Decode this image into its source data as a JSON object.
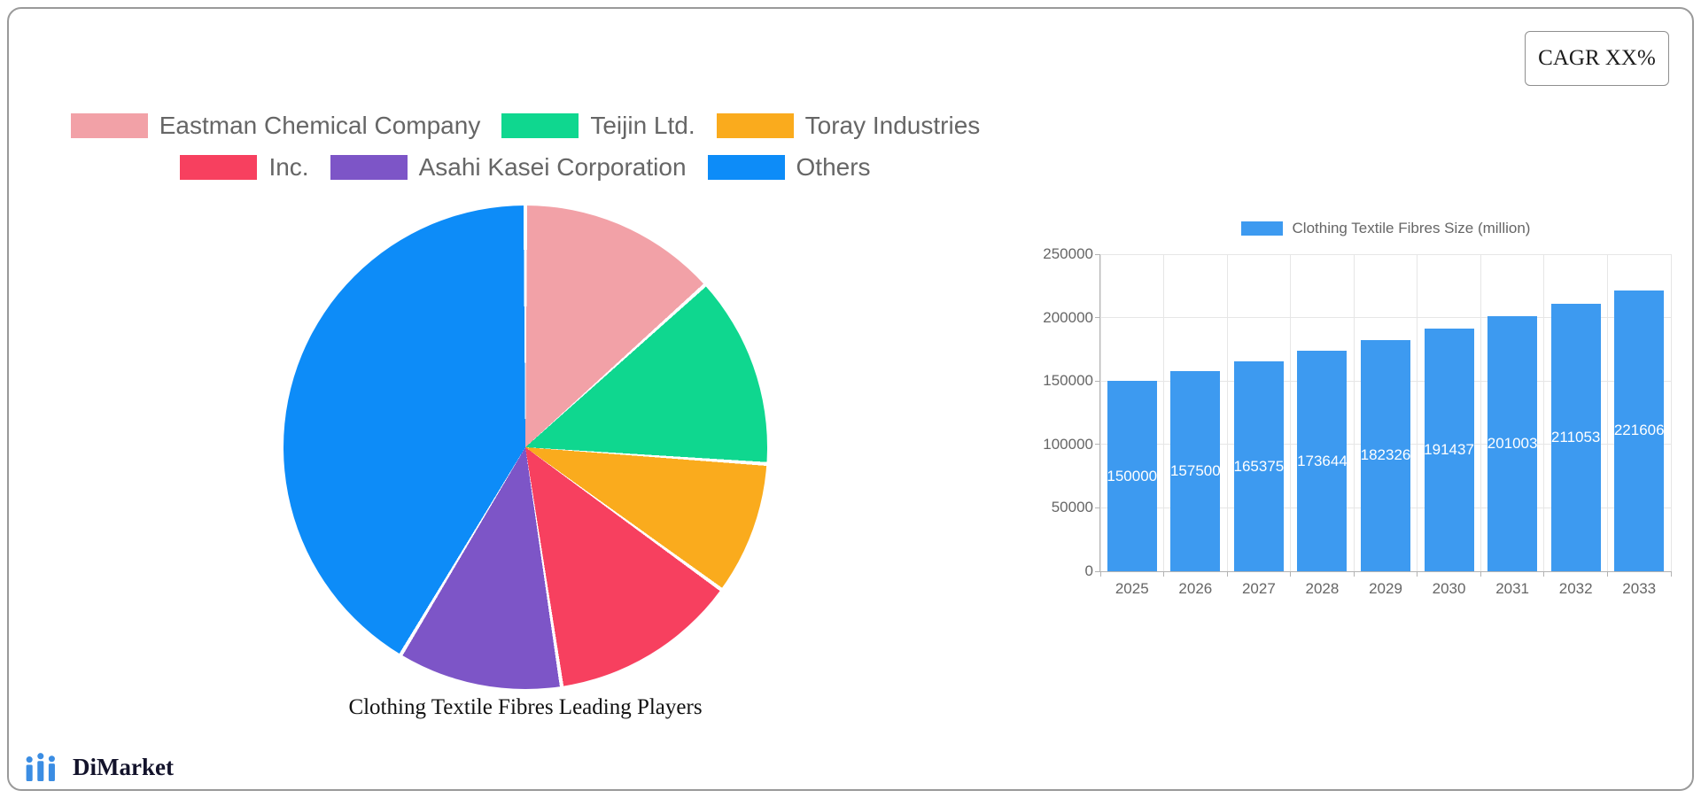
{
  "cagr_box": {
    "label": "CAGR XX%"
  },
  "logo": {
    "text": "DiMarket",
    "icon": "bar-chart-logo-icon",
    "icon_color": "#3b8de3"
  },
  "colors": {
    "bar_blue": "#3d9af0",
    "grid": "#e6e6e6",
    "axis": "#b3b3b3",
    "chart_text": "#666666",
    "title_text": "#111111"
  },
  "chart_data": [
    {
      "type": "pie",
      "title": "Clothing Textile Fibres Leading Players",
      "legend_position": "top",
      "legend_rows": [
        3,
        3
      ],
      "slices": [
        {
          "label": "Eastman Chemical Company",
          "percent": 13.3,
          "color": "#f2a1a7"
        },
        {
          "label": "Teijin Ltd.",
          "percent": 12.8,
          "color": "#0fd78f"
        },
        {
          "label": "Toray Industries",
          "percent": 8.9,
          "color": "#faab1d"
        },
        {
          "label": "Inc.",
          "percent": 12.6,
          "color": "#f7405f"
        },
        {
          "label": "Asahi Kasei Corporation",
          "percent": 11.0,
          "color": "#7d55c7"
        },
        {
          "label": "Others",
          "percent": 41.4,
          "color": "#0d8cf8"
        }
      ],
      "note": "percents estimated from slice angles, clockwise from 12 o'clock"
    },
    {
      "type": "bar",
      "legend": "Clothing Textile Fibres Size (million)",
      "categories": [
        "2025",
        "2026",
        "2027",
        "2028",
        "2029",
        "2030",
        "2031",
        "2032",
        "2033"
      ],
      "values": [
        150000,
        157500,
        165375,
        173644,
        182326,
        191437,
        201003,
        211053,
        221606
      ],
      "value_labels_inside_bars": true,
      "bar_color": "#3d9af0",
      "ylabel": "",
      "xlabel": "",
      "ylim": [
        0,
        250000
      ],
      "yticks": [
        0,
        50000,
        100000,
        150000,
        200000,
        250000
      ],
      "grid": true,
      "legend_position": "top"
    }
  ]
}
